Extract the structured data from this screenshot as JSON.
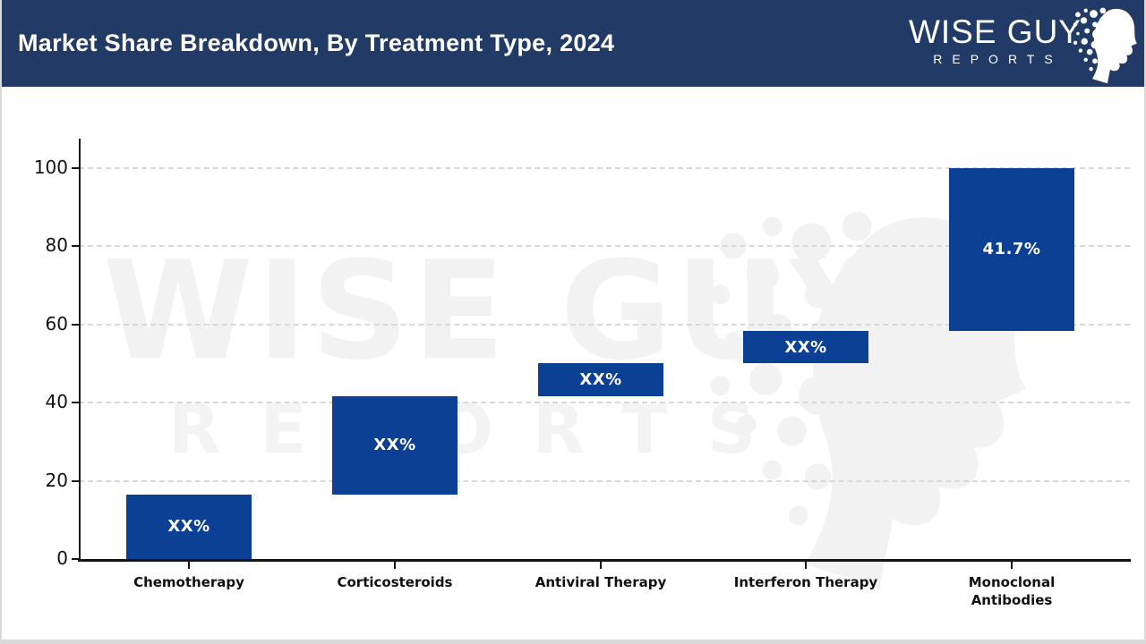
{
  "header": {
    "title": "Market Share Breakdown, By Treatment Type, 2024",
    "logo": {
      "line1": "WISE GUY",
      "line2": "REPORTS"
    }
  },
  "watermark": {
    "line1": "WISE GUY",
    "line2": "REPORTS"
  },
  "colors": {
    "header_bg": "#223A66",
    "bar": "#0C4094",
    "bar_label": "#FFFFFF",
    "grid": "#D8D8D8",
    "axis": "#141414",
    "watermark": "#F2F2F2"
  },
  "chart_data": {
    "type": "bar",
    "subtype": "waterfall",
    "title": "Market Share Breakdown, By Treatment Type, 2024",
    "xlabel": "",
    "ylabel": "",
    "ylim": [
      0,
      107
    ],
    "yticks": [
      0,
      20,
      40,
      60,
      80,
      100
    ],
    "grid": "dashed-horizontal",
    "legend": "none",
    "categories": [
      "Chemotherapy",
      "Corticosteroids",
      "Antiviral Therapy",
      "Interferon Therapy",
      "Monoclonal Antibodies"
    ],
    "segments": [
      {
        "category": "Chemotherapy",
        "category_lines": [
          "Chemotherapy"
        ],
        "start": 0,
        "end": 16.5,
        "value": 16.5,
        "label": "XX%"
      },
      {
        "category": "Corticosteroids",
        "category_lines": [
          "Corticosteroids"
        ],
        "start": 16.5,
        "end": 41.7,
        "value": 25.2,
        "label": "XX%"
      },
      {
        "category": "Antiviral Therapy",
        "category_lines": [
          "Antiviral Therapy"
        ],
        "start": 41.7,
        "end": 50.0,
        "value": 8.3,
        "label": "XX%"
      },
      {
        "category": "Interferon Therapy",
        "category_lines": [
          "Interferon Therapy"
        ],
        "start": 50.0,
        "end": 58.3,
        "value": 8.3,
        "label": "XX%"
      },
      {
        "category": "Monoclonal Antibodies",
        "category_lines": [
          "Monoclonal",
          "Antibodies"
        ],
        "start": 58.3,
        "end": 100.0,
        "value": 41.7,
        "label": "41.7%"
      }
    ]
  }
}
